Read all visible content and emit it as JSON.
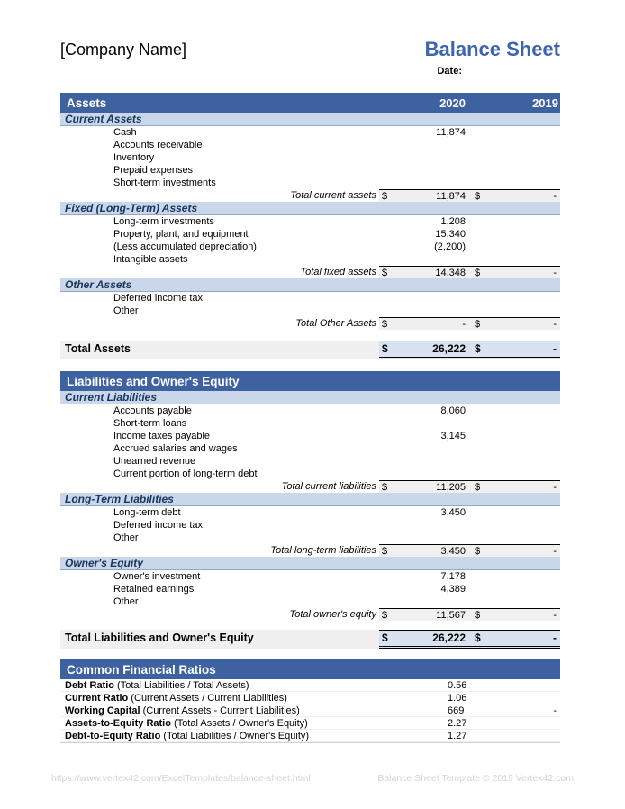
{
  "header": {
    "company_name": "[Company Name]",
    "title": "Balance Sheet",
    "date_label": "Date:"
  },
  "columns": [
    "2020",
    "2019"
  ],
  "currency": "$",
  "sections": [
    {
      "id": "assets",
      "header": "Assets",
      "groups": [
        {
          "name": "Current Assets",
          "items": [
            {
              "label": "Cash",
              "v1": "11,874",
              "v2": ""
            },
            {
              "label": "Accounts receivable",
              "v1": "",
              "v2": ""
            },
            {
              "label": "Inventory",
              "v1": "",
              "v2": ""
            },
            {
              "label": "Prepaid expenses",
              "v1": "",
              "v2": ""
            },
            {
              "label": "Short-term investments",
              "v1": "",
              "v2": ""
            }
          ],
          "total": {
            "label": "Total current assets",
            "v1": "11,874",
            "v2": "-"
          }
        },
        {
          "name": "Fixed (Long-Term) Assets",
          "items": [
            {
              "label": "Long-term investments",
              "v1": "1,208",
              "v2": ""
            },
            {
              "label": "Property, plant, and equipment",
              "v1": "15,340",
              "v2": ""
            },
            {
              "label": "(Less accumulated depreciation)",
              "v1": "(2,200)",
              "v2": ""
            },
            {
              "label": "Intangible assets",
              "v1": "",
              "v2": ""
            }
          ],
          "total": {
            "label": "Total fixed assets",
            "v1": "14,348",
            "v2": "-"
          }
        },
        {
          "name": "Other Assets",
          "items": [
            {
              "label": "Deferred income tax",
              "v1": "",
              "v2": ""
            },
            {
              "label": "Other",
              "v1": "",
              "v2": ""
            }
          ],
          "total": {
            "label": "Total Other Assets",
            "v1": "-",
            "v2": "-"
          }
        }
      ],
      "grand_total": {
        "label": "Total Assets",
        "v1": "26,222",
        "v2": "-"
      }
    },
    {
      "id": "liabilities",
      "header": "Liabilities and Owner's Equity",
      "groups": [
        {
          "name": "Current Liabilities",
          "items": [
            {
              "label": "Accounts payable",
              "v1": "8,060",
              "v2": ""
            },
            {
              "label": "Short-term loans",
              "v1": "",
              "v2": ""
            },
            {
              "label": "Income taxes payable",
              "v1": "3,145",
              "v2": ""
            },
            {
              "label": "Accrued salaries and wages",
              "v1": "",
              "v2": ""
            },
            {
              "label": "Unearned revenue",
              "v1": "",
              "v2": ""
            },
            {
              "label": "Current portion of long-term debt",
              "v1": "",
              "v2": ""
            }
          ],
          "total": {
            "label": "Total current liabilities",
            "v1": "11,205",
            "v2": "-"
          }
        },
        {
          "name": "Long-Term Liabilities",
          "items": [
            {
              "label": "Long-term debt",
              "v1": "3,450",
              "v2": ""
            },
            {
              "label": "Deferred income tax",
              "v1": "",
              "v2": ""
            },
            {
              "label": "Other",
              "v1": "",
              "v2": ""
            }
          ],
          "total": {
            "label": "Total long-term liabilities",
            "v1": "3,450",
            "v2": "-"
          }
        },
        {
          "name": "Owner's Equity",
          "items": [
            {
              "label": "Owner's investment",
              "v1": "7,178",
              "v2": ""
            },
            {
              "label": "Retained earnings",
              "v1": "4,389",
              "v2": ""
            },
            {
              "label": "Other",
              "v1": "",
              "v2": ""
            }
          ],
          "total": {
            "label": "Total owner's equity",
            "v1": "11,567",
            "v2": "-"
          }
        }
      ],
      "grand_total": {
        "label": "Total Liabilities and Owner's Equity",
        "v1": "26,222",
        "v2": "-"
      }
    }
  ],
  "ratios": {
    "header": "Common Financial Ratios",
    "rows": [
      {
        "name": "Debt Ratio",
        "formula": "(Total Liabilities / Total Assets)",
        "v1": "0.56",
        "v2": ""
      },
      {
        "name": "Current Ratio",
        "formula": "(Current Assets / Current Liabilities)",
        "v1": "1.06",
        "v2": ""
      },
      {
        "name": "Working Capital",
        "formula": "(Current Assets - Current Liabilities)",
        "v1": "669",
        "v2": "-"
      },
      {
        "name": "Assets-to-Equity Ratio",
        "formula": "(Total Assets / Owner's Equity)",
        "v1": "2.27",
        "v2": ""
      },
      {
        "name": "Debt-to-Equity Ratio",
        "formula": "(Total Liabilities / Owner's Equity)",
        "v1": "1.27",
        "v2": ""
      }
    ]
  },
  "footer": {
    "left": "https://www.vertex42.com/ExcelTemplates/balance-sheet.html",
    "right": "Balance Sheet Template © 2019 Vertex42.com"
  },
  "colors": {
    "bar_blue": "#3E619F",
    "subheader_blue": "#CAD6E9",
    "title_blue": "#3D64AE",
    "total_fill": "#F0F0F0",
    "grand_fill": "#D9E2F1"
  }
}
